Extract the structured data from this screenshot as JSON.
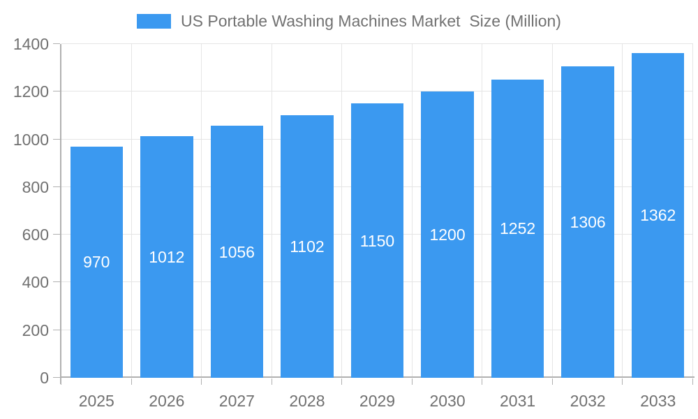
{
  "chart_data": {
    "type": "bar",
    "title": "US Portable Washing Machines Market  Size (Million)",
    "categories": [
      "2025",
      "2026",
      "2027",
      "2028",
      "2029",
      "2030",
      "2031",
      "2032",
      "2033"
    ],
    "values": [
      970,
      1012,
      1056,
      1102,
      1150,
      1200,
      1252,
      1306,
      1362
    ],
    "yticks": [
      0,
      200,
      400,
      600,
      800,
      1000,
      1200,
      1400
    ],
    "ylim": [
      0,
      1400
    ],
    "xlabel": "",
    "ylabel": "",
    "grid": true,
    "legend_position": "top-center",
    "value_labels": "inside-center",
    "colors": {
      "bar": "#3B99F0",
      "value_label": "#FFFFFF",
      "axis_text": "#707070",
      "title_text": "#717171",
      "grid_line": "#E5E5E5",
      "axis_line": "#B0B0B0"
    }
  }
}
